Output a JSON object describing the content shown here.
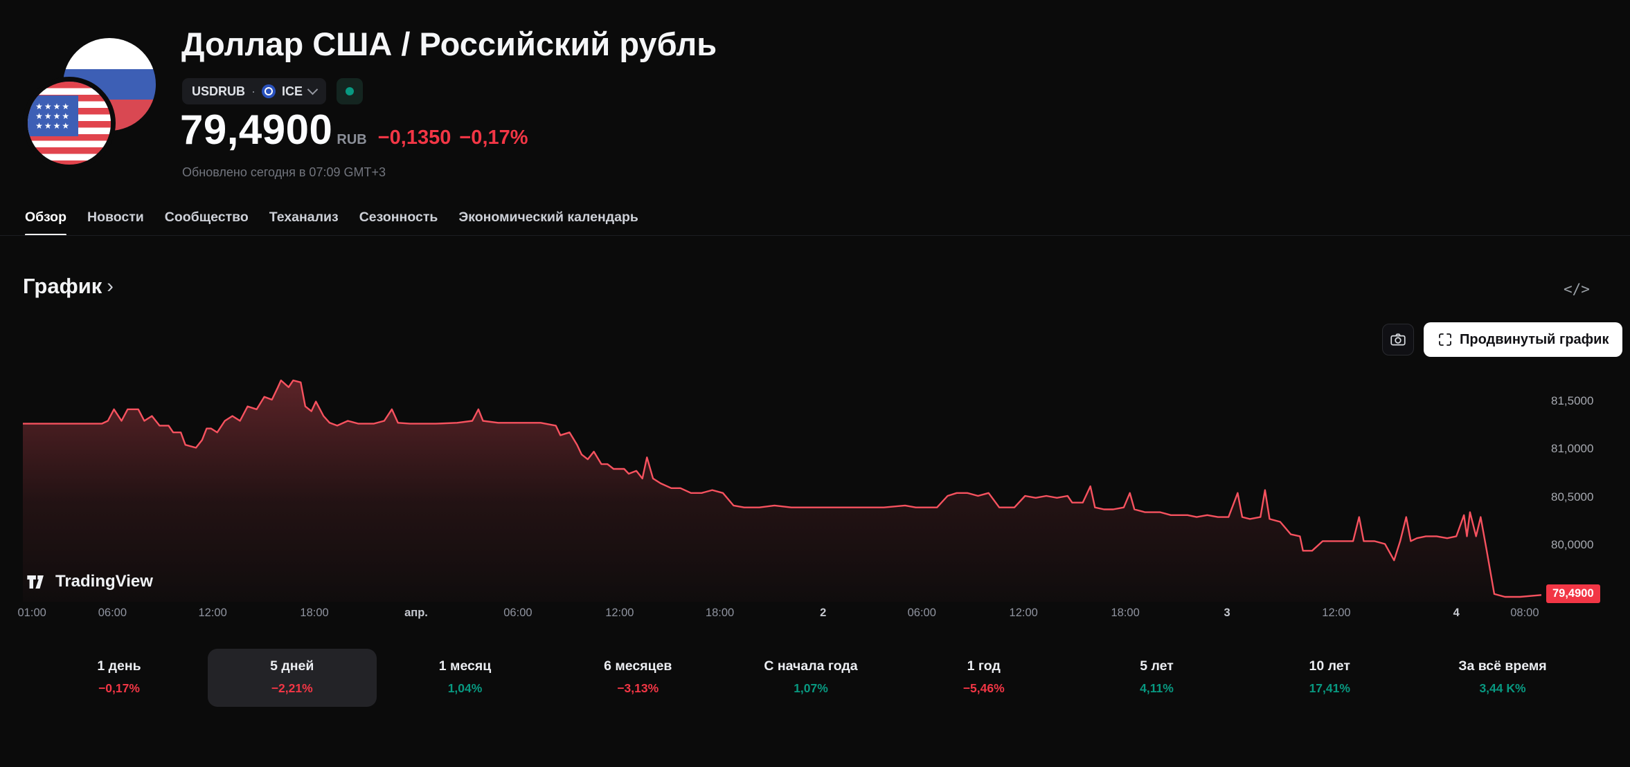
{
  "header": {
    "title": "Доллар США / Российский рубль",
    "symbol_pill": {
      "symbol": "USDRUB",
      "separator": "·",
      "exchange": "ICE"
    },
    "market_status": "open",
    "price": {
      "value": "79,4900",
      "currency": "RUB",
      "change_abs": "−0,1350",
      "change_pct": "−0,17%"
    },
    "updated": "Обновлено сегодня в 07:09 GMT+3"
  },
  "tabs": [
    {
      "label": "Обзор",
      "active": true
    },
    {
      "label": "Новости",
      "active": false
    },
    {
      "label": "Сообщество",
      "active": false
    },
    {
      "label": "Теханализ",
      "active": false
    },
    {
      "label": "Сезонность",
      "active": false
    },
    {
      "label": "Экономический календарь",
      "active": false
    }
  ],
  "section": {
    "title": "График",
    "chevron": "›"
  },
  "toolbar": {
    "advanced_label": "Продвинутый график"
  },
  "watermark": {
    "text": "TradingView"
  },
  "icons": {
    "code": "</>"
  },
  "chart_data": {
    "type": "area",
    "title": "USDRUB — 5 дней",
    "xlabel": "",
    "ylabel": "RUB",
    "ylim": [
      79.42,
      81.9
    ],
    "grid": false,
    "legend": "none",
    "y_ticks": [
      "81,5000",
      "81,0000",
      "80,5000",
      "80,0000"
    ],
    "x_ticks": [
      {
        "label": "01:00",
        "x": 0.6,
        "date": false
      },
      {
        "label": "06:00",
        "x": 5.9,
        "date": false
      },
      {
        "label": "12:00",
        "x": 12.5,
        "date": false
      },
      {
        "label": "18:00",
        "x": 19.2,
        "date": false
      },
      {
        "label": "апр.",
        "x": 25.9,
        "date": true
      },
      {
        "label": "06:00",
        "x": 32.6,
        "date": false
      },
      {
        "label": "12:00",
        "x": 39.3,
        "date": false
      },
      {
        "label": "18:00",
        "x": 45.9,
        "date": false
      },
      {
        "label": "2",
        "x": 52.7,
        "date": true
      },
      {
        "label": "06:00",
        "x": 59.2,
        "date": false
      },
      {
        "label": "12:00",
        "x": 65.9,
        "date": false
      },
      {
        "label": "18:00",
        "x": 72.6,
        "date": false
      },
      {
        "label": "3",
        "x": 79.3,
        "date": true
      },
      {
        "label": "12:00",
        "x": 86.5,
        "date": false
      },
      {
        "label": "4",
        "x": 94.4,
        "date": true
      },
      {
        "label": "08:00",
        "x": 98.9,
        "date": false
      }
    ],
    "last_price": "79,4900",
    "last_value": 79.49,
    "points": [
      [
        0,
        81.27
      ],
      [
        5.2,
        81.27
      ],
      [
        5.6,
        81.3
      ],
      [
        6,
        81.42
      ],
      [
        6.5,
        81.3
      ],
      [
        6.9,
        81.42
      ],
      [
        7.6,
        81.42
      ],
      [
        8,
        81.3
      ],
      [
        8.5,
        81.35
      ],
      [
        9,
        81.25
      ],
      [
        9.6,
        81.25
      ],
      [
        9.9,
        81.18
      ],
      [
        10.4,
        81.18
      ],
      [
        10.7,
        81.05
      ],
      [
        11.4,
        81.02
      ],
      [
        11.8,
        81.1
      ],
      [
        12.1,
        81.22
      ],
      [
        12.4,
        81.22
      ],
      [
        12.8,
        81.18
      ],
      [
        13.3,
        81.3
      ],
      [
        13.8,
        81.35
      ],
      [
        14.3,
        81.3
      ],
      [
        14.8,
        81.45
      ],
      [
        15.4,
        81.42
      ],
      [
        15.9,
        81.55
      ],
      [
        16.4,
        81.52
      ],
      [
        16.8,
        81.65
      ],
      [
        17,
        81.72
      ],
      [
        17.5,
        81.65
      ],
      [
        17.8,
        81.72
      ],
      [
        18.3,
        81.7
      ],
      [
        18.6,
        81.45
      ],
      [
        19,
        81.4
      ],
      [
        19.3,
        81.5
      ],
      [
        19.8,
        81.35
      ],
      [
        20.2,
        81.28
      ],
      [
        20.7,
        81.25
      ],
      [
        21.4,
        81.3
      ],
      [
        22.1,
        81.27
      ],
      [
        23.1,
        81.27
      ],
      [
        23.8,
        81.3
      ],
      [
        24.3,
        81.42
      ],
      [
        24.7,
        81.28
      ],
      [
        25.5,
        81.27
      ],
      [
        27.2,
        81.27
      ],
      [
        28.6,
        81.28
      ],
      [
        29.6,
        81.3
      ],
      [
        30,
        81.42
      ],
      [
        30.3,
        81.3
      ],
      [
        31.3,
        81.28
      ],
      [
        34.1,
        81.28
      ],
      [
        35.1,
        81.25
      ],
      [
        35.4,
        81.15
      ],
      [
        36,
        81.18
      ],
      [
        36.5,
        81.05
      ],
      [
        36.8,
        80.95
      ],
      [
        37.2,
        80.9
      ],
      [
        37.6,
        80.98
      ],
      [
        38.1,
        80.85
      ],
      [
        38.5,
        80.85
      ],
      [
        38.9,
        80.8
      ],
      [
        39.6,
        80.8
      ],
      [
        39.9,
        80.75
      ],
      [
        40.4,
        80.78
      ],
      [
        40.8,
        80.7
      ],
      [
        41.1,
        80.92
      ],
      [
        41.5,
        80.7
      ],
      [
        42,
        80.65
      ],
      [
        42.7,
        80.6
      ],
      [
        43.3,
        80.6
      ],
      [
        44,
        80.55
      ],
      [
        44.7,
        80.55
      ],
      [
        45.4,
        80.58
      ],
      [
        46.1,
        80.55
      ],
      [
        46.8,
        80.42
      ],
      [
        47.5,
        80.4
      ],
      [
        48.5,
        80.4
      ],
      [
        49.5,
        80.42
      ],
      [
        50.6,
        80.4
      ],
      [
        52.6,
        80.4
      ],
      [
        54.7,
        80.4
      ],
      [
        56.7,
        80.4
      ],
      [
        58.1,
        80.42
      ],
      [
        58.8,
        80.4
      ],
      [
        60.2,
        80.4
      ],
      [
        60.9,
        80.52
      ],
      [
        61.5,
        80.55
      ],
      [
        62.2,
        80.55
      ],
      [
        62.9,
        80.52
      ],
      [
        63.6,
        80.55
      ],
      [
        64.3,
        80.4
      ],
      [
        65.3,
        80.4
      ],
      [
        66,
        80.52
      ],
      [
        66.7,
        80.5
      ],
      [
        67.4,
        80.52
      ],
      [
        68.1,
        80.5
      ],
      [
        68.8,
        80.52
      ],
      [
        69.1,
        80.45
      ],
      [
        69.8,
        80.45
      ],
      [
        70.3,
        80.62
      ],
      [
        70.6,
        80.4
      ],
      [
        71.2,
        80.38
      ],
      [
        71.8,
        80.38
      ],
      [
        72.5,
        80.4
      ],
      [
        72.9,
        80.55
      ],
      [
        73.2,
        80.38
      ],
      [
        73.9,
        80.35
      ],
      [
        74.9,
        80.35
      ],
      [
        75.6,
        80.32
      ],
      [
        76.7,
        80.32
      ],
      [
        77.3,
        80.3
      ],
      [
        78,
        80.32
      ],
      [
        78.7,
        80.3
      ],
      [
        79.4,
        80.3
      ],
      [
        80,
        80.55
      ],
      [
        80.3,
        80.3
      ],
      [
        80.8,
        80.28
      ],
      [
        81.5,
        80.3
      ],
      [
        81.8,
        80.58
      ],
      [
        82.1,
        80.28
      ],
      [
        82.8,
        80.25
      ],
      [
        83.5,
        80.12
      ],
      [
        84.1,
        80.1
      ],
      [
        84.3,
        79.95
      ],
      [
        84.9,
        79.95
      ],
      [
        85.6,
        80.05
      ],
      [
        87,
        80.05
      ],
      [
        87.6,
        80.05
      ],
      [
        88,
        80.3
      ],
      [
        88.3,
        80.05
      ],
      [
        89,
        80.05
      ],
      [
        89.7,
        80.02
      ],
      [
        90.3,
        79.85
      ],
      [
        90.7,
        80.05
      ],
      [
        91.1,
        80.3
      ],
      [
        91.4,
        80.05
      ],
      [
        91.8,
        80.08
      ],
      [
        92.4,
        80.1
      ],
      [
        93.1,
        80.1
      ],
      [
        93.8,
        80.08
      ],
      [
        94.4,
        80.1
      ],
      [
        94.9,
        80.32
      ],
      [
        95.1,
        80.1
      ],
      [
        95.3,
        80.35
      ],
      [
        95.7,
        80.1
      ],
      [
        96,
        80.3
      ],
      [
        96.4,
        79.95
      ],
      [
        96.9,
        79.5
      ],
      [
        97.6,
        79.47
      ],
      [
        98.6,
        79.47
      ],
      [
        100,
        79.49
      ]
    ]
  },
  "periods": [
    {
      "label": "1 день",
      "change": "−0,17%",
      "dir": "down",
      "selected": false
    },
    {
      "label": "5 дней",
      "change": "−2,21%",
      "dir": "down",
      "selected": true
    },
    {
      "label": "1 месяц",
      "change": "1,04%",
      "dir": "up",
      "selected": false
    },
    {
      "label": "6 месяцев",
      "change": "−3,13%",
      "dir": "down",
      "selected": false
    },
    {
      "label": "С начала года",
      "change": "1,07%",
      "dir": "up",
      "selected": false
    },
    {
      "label": "1 год",
      "change": "−5,46%",
      "dir": "down",
      "selected": false
    },
    {
      "label": "5 лет",
      "change": "4,11%",
      "dir": "up",
      "selected": false
    },
    {
      "label": "10 лет",
      "change": "17,41%",
      "dir": "up",
      "selected": false
    },
    {
      "label": "За всё время",
      "change": "3,44 K%",
      "dir": "up",
      "selected": false
    }
  ],
  "colors": {
    "negative": "#f23645",
    "positive": "#089981",
    "line": "#f7525f",
    "price_tag_bg": "#f23645"
  }
}
